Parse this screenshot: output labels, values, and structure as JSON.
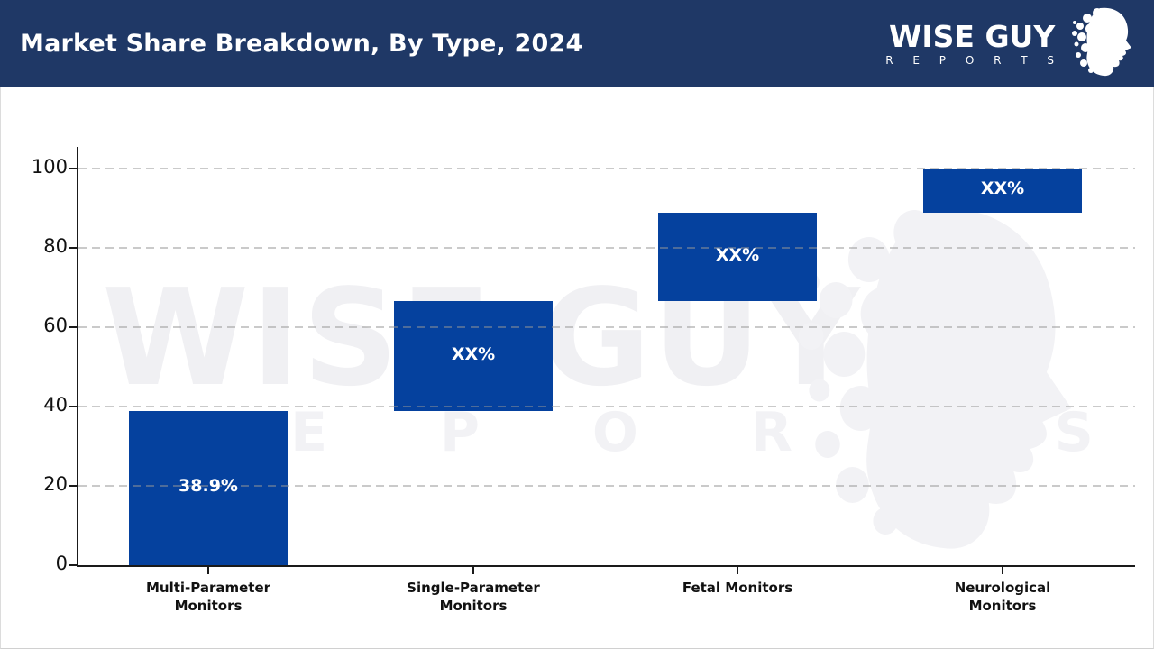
{
  "header": {
    "title": "Market Share Breakdown, By Type, 2024",
    "bg_color": "#1f3866",
    "logo": {
      "name": "WISE GUY",
      "sub": "R E P O R T S",
      "icon": "dotted-head-profile"
    }
  },
  "watermark": {
    "line1": "WISE GUY",
    "line2": "R E P O R T S",
    "icon": "dotted-head-profile"
  },
  "chart_data": {
    "type": "bar",
    "variant": "waterfall-floating-segments",
    "title": "Market Share Breakdown, By Type, 2024",
    "categories": [
      "Multi-Parameter Monitors",
      "Single-Parameter Monitors",
      "Fetal Monitors",
      "Neurological Monitors"
    ],
    "segments": [
      {
        "category_lines": [
          "Multi-Parameter",
          "Monitors"
        ],
        "start": 0,
        "end": 38.9,
        "label": "38.9%"
      },
      {
        "category_lines": [
          "Single-Parameter",
          "Monitors"
        ],
        "start": 38.9,
        "end": 66.7,
        "label": "XX%"
      },
      {
        "category_lines": [
          "Fetal Monitors"
        ],
        "start": 66.7,
        "end": 88.9,
        "label": "XX%"
      },
      {
        "category_lines": [
          "Neurological",
          "Monitors"
        ],
        "start": 88.9,
        "end": 100,
        "label": "XX%"
      }
    ],
    "yticks": [
      0,
      20,
      40,
      60,
      80,
      100
    ],
    "ylim": [
      0,
      105
    ],
    "xlabel": "",
    "ylabel": "",
    "grid": "horizontal-dashed",
    "legend": "none",
    "colors": {
      "bar": "#05419e",
      "value_label": "#ffffff",
      "axis": "#1a1a1a",
      "gridline": "#d4d4d4",
      "header_bg": "#1f3866",
      "watermark": "#f0f0f3"
    }
  }
}
